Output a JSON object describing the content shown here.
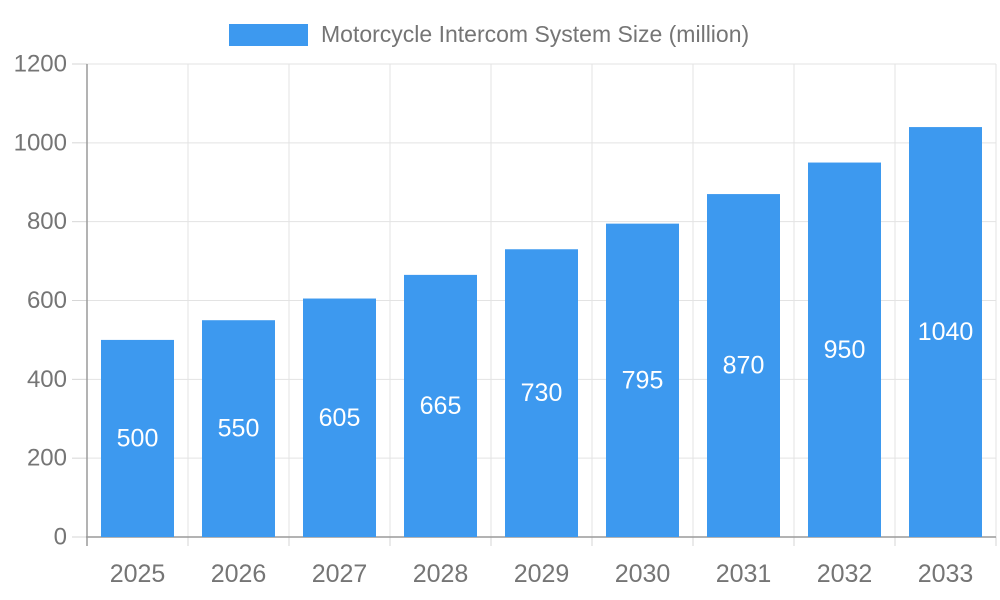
{
  "legend": {
    "label": "Motorcycle Intercom System Size (million)"
  },
  "chart_data": {
    "type": "bar",
    "title": "Motorcycle Intercom System Size (million)",
    "categories": [
      "2025",
      "2026",
      "2027",
      "2028",
      "2029",
      "2030",
      "2031",
      "2032",
      "2033"
    ],
    "values": [
      500,
      550,
      605,
      665,
      730,
      795,
      870,
      950,
      1040
    ],
    "xlabel": "",
    "ylabel": "",
    "ylim": [
      0,
      1200
    ],
    "yticks": [
      0,
      200,
      400,
      600,
      800,
      1000,
      1200
    ],
    "grid": true,
    "legend_position": "top",
    "colors": {
      "bar": "#3D99EF",
      "bar_label": "#ffffff",
      "axis_label": "#757575",
      "grid_line": "#e3e3e3",
      "tick_line": "#d6d6d6",
      "axis_line": "#9a9a9a"
    }
  }
}
